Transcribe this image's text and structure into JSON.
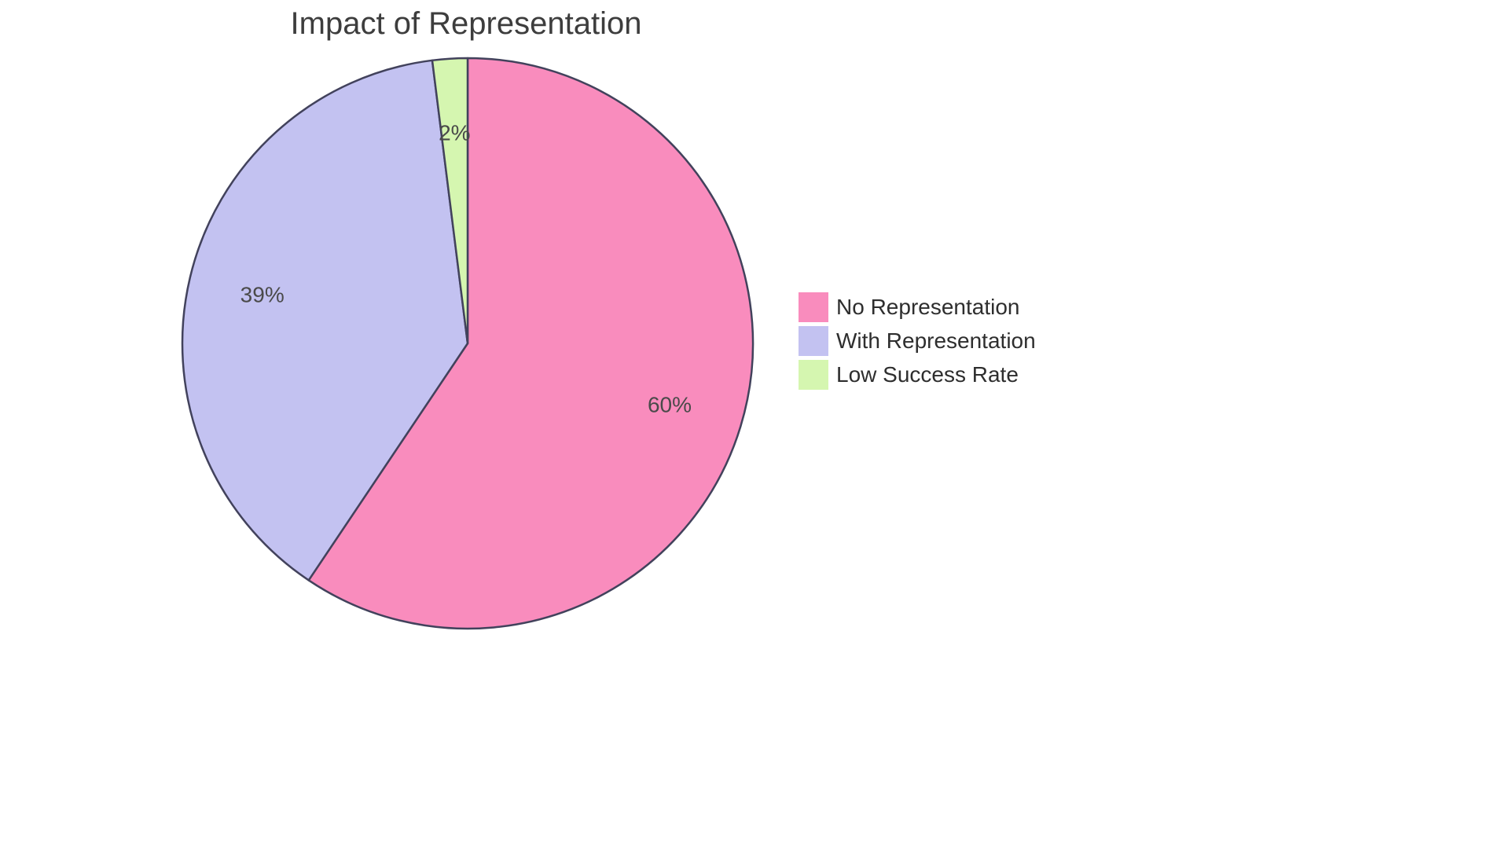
{
  "title": "Impact of Representation",
  "chart_data": {
    "type": "pie",
    "title": "Impact of Representation",
    "slices": [
      {
        "label": "No Representation",
        "value": 60,
        "display": "60%",
        "color": "#F98CBD"
      },
      {
        "label": "With Representation",
        "value": 39,
        "display": "39%",
        "color": "#C3C2F1"
      },
      {
        "label": "Low Success Rate",
        "value": 2,
        "display": "2%",
        "color": "#D5F6B0"
      }
    ],
    "start_angle_deg": 0,
    "direction": "clockwise",
    "stroke_color": "#42425C",
    "label_color": "#4A4A4A",
    "background": "#FFFFFF",
    "legend_position": "right"
  }
}
